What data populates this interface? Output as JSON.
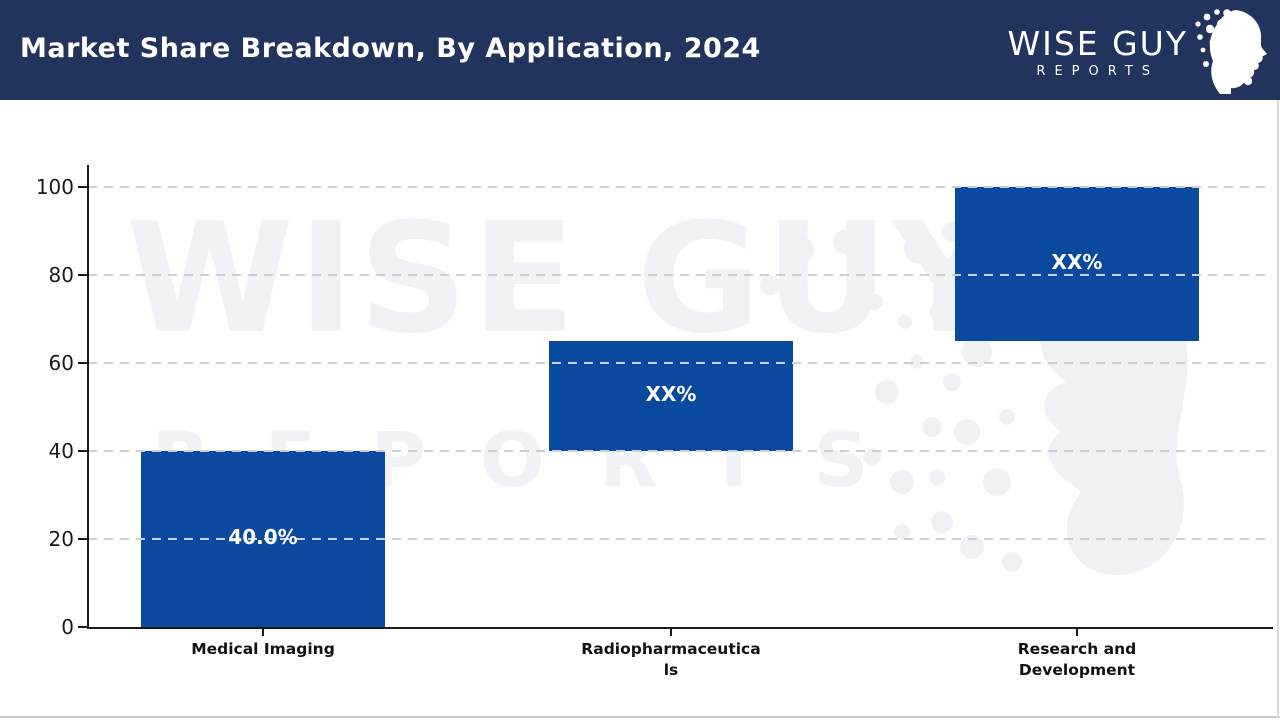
{
  "header": {
    "title": "Market Share Breakdown, By Application, 2024",
    "logo": {
      "line1": "WISE GUY",
      "line2": "REPORTS"
    }
  },
  "watermark": {
    "line1": "WISE GUY",
    "line2": "REPORTS"
  },
  "chart_data": {
    "type": "bar",
    "subtype": "floating-waterfall",
    "title": "Market Share Breakdown, By Application, 2024",
    "categories": [
      "Medical Imaging",
      "Radiopharmaceuticals",
      "Research and Development"
    ],
    "category_label_lines": [
      [
        "Medical Imaging"
      ],
      [
        "Radiopharmaceutica",
        "ls"
      ],
      [
        "Research and",
        "Development"
      ]
    ],
    "segments": [
      {
        "category": "Medical Imaging",
        "start": 0,
        "end": 40,
        "label": "40.0%"
      },
      {
        "category": "Radiopharmaceuticals",
        "start": 40,
        "end": 65,
        "label": "XX%"
      },
      {
        "category": "Research and Development",
        "start": 65,
        "end": 100,
        "label": "XX%"
      }
    ],
    "ylim": [
      0,
      100
    ],
    "yticks": [
      0,
      20,
      40,
      60,
      80,
      100
    ],
    "xlabel": "",
    "ylabel": "",
    "grid": "horizontal-dashed",
    "legend": "none"
  },
  "colors": {
    "header_bg": "#22345e",
    "bar": "#0a4a9e",
    "bar_label": "#ffffff",
    "grid": "#cdcfd2",
    "axis": "#1a1a1a",
    "watermark": "#f1f2f5",
    "border": "#c9c9c9"
  }
}
